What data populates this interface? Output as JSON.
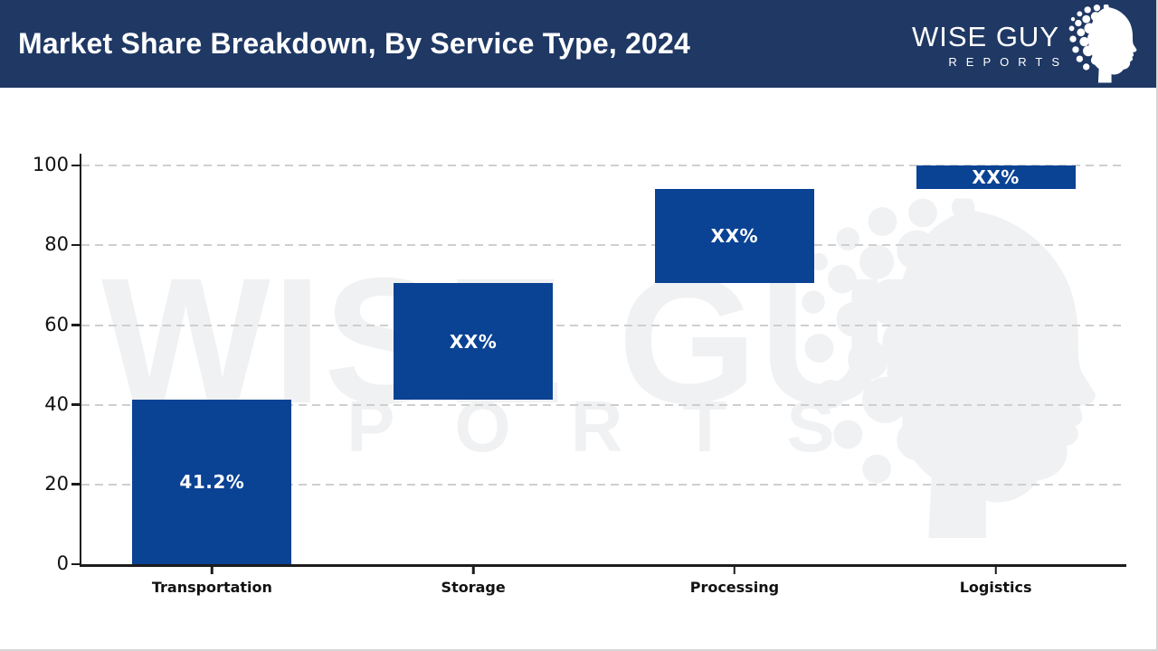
{
  "header": {
    "title": "Market Share Breakdown, By Service Type, 2024",
    "logo": {
      "line1": "WISE GUY",
      "line2": "REPORTS"
    }
  },
  "watermark": {
    "line1": "WISE GUY",
    "line2": "REPORTS"
  },
  "chart_data": {
    "type": "bar",
    "subtype": "waterfall",
    "title": "Market Share Breakdown, By Service Type, 2024",
    "categories": [
      "Transportation",
      "Storage",
      "Processing",
      "Logistics"
    ],
    "segments": [
      {
        "category": "Transportation",
        "start": 0,
        "end": 41.2,
        "label": "41.2%"
      },
      {
        "category": "Storage",
        "start": 41.2,
        "end": 70.5,
        "label": "XX%"
      },
      {
        "category": "Processing",
        "start": 70.5,
        "end": 94.2,
        "label": "XX%"
      },
      {
        "category": "Logistics",
        "start": 94.2,
        "end": 100,
        "label": "XX%"
      }
    ],
    "y_ticks": [
      0,
      20,
      40,
      60,
      80,
      100
    ],
    "ylim": [
      0,
      103
    ],
    "xlabel": "",
    "ylabel": "",
    "grid": "horizontal-dashed",
    "legend": "none",
    "colors": {
      "bar": "#0a4294",
      "bar_label": "#ffffff",
      "header_bg": "#1f3864",
      "grid": "#cfcfcf",
      "axis": "#1c1c1c",
      "watermark": "#f0f1f3"
    }
  }
}
